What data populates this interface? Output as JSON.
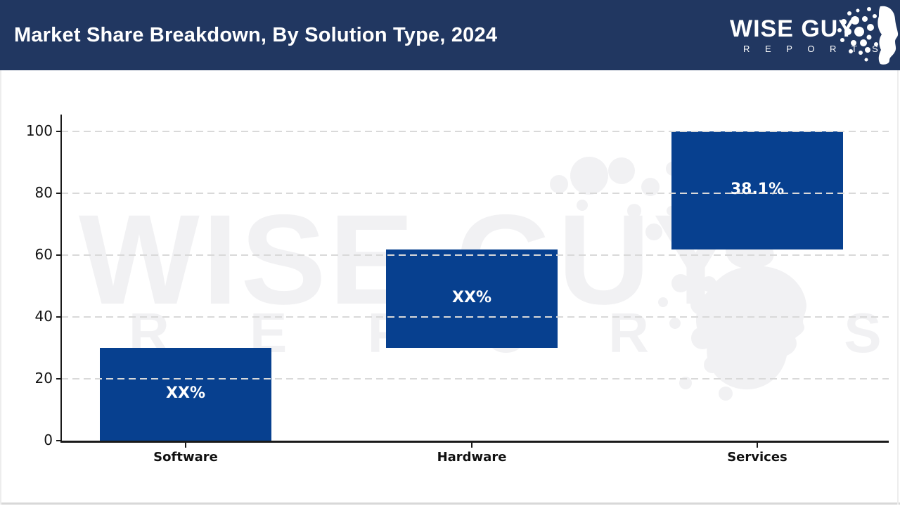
{
  "header": {
    "title": "Market Share Breakdown, By Solution Type, 2024",
    "background_color": "#213761",
    "logo": {
      "brand_line1": "WISE GUY",
      "brand_line2": "R E P O R T S",
      "face_icon": "dotted-face-profile-icon"
    }
  },
  "watermark": {
    "line1": "WISE GUY",
    "line2": "R E P O R T S",
    "face_icon": "dotted-face-profile-watermark"
  },
  "chart_data": {
    "type": "bar",
    "variant": "waterfall",
    "title": "Market Share Breakdown, By Solution Type, 2024",
    "categories": [
      "Software",
      "Hardware",
      "Services"
    ],
    "segments": [
      {
        "category": "Software",
        "start": 0,
        "end": 30,
        "label": "XX%"
      },
      {
        "category": "Hardware",
        "start": 30,
        "end": 61.9,
        "label": "XX%"
      },
      {
        "category": "Services",
        "start": 61.9,
        "end": 100,
        "label": "38.1%"
      }
    ],
    "values_pct": [
      30,
      31.9,
      38.1
    ],
    "xlabel": "",
    "ylabel": "",
    "yticks": [
      0,
      20,
      40,
      60,
      80,
      100
    ],
    "ylim": [
      0,
      105
    ],
    "legend": "none",
    "grid": {
      "axis": "y",
      "style": "dashed",
      "color": "#d9d9d9"
    },
    "bar_color": "#07408f",
    "bar_label_color": "#ffffff",
    "axis_color": "#1a1a1a"
  }
}
